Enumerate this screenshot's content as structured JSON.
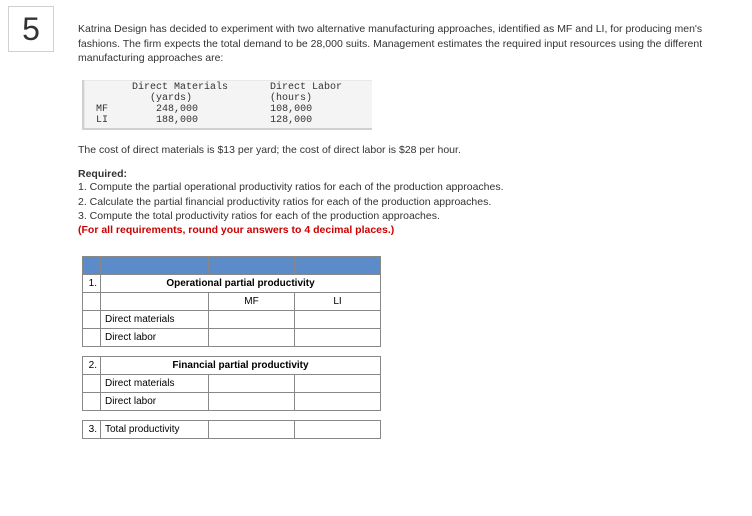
{
  "question_number": "5",
  "intro": "Katrina Design has decided to experiment with two alternative manufacturing approaches, identified as MF and LI, for producing men's fashions. The firm expects the total demand to be 28,000 suits. Management estimates the required input resources using the different manufacturing approaches are:",
  "data_table": {
    "header1_col1": "Direct Materials",
    "header1_col2": "Direct Labor",
    "header2_col1": "(yards)",
    "header2_col2": "(hours)",
    "rows": [
      {
        "label": "MF",
        "materials": "248,000",
        "labor": "108,000"
      },
      {
        "label": "LI",
        "materials": "188,000",
        "labor": "128,000"
      }
    ]
  },
  "cost_text": "The cost of direct materials is $13 per yard; the cost of direct labor is $28 per hour.",
  "required_label": "Required:",
  "requirements": [
    "1. Compute the partial operational productivity ratios for each of the production approaches.",
    "2. Calculate the partial financial productivity ratios for each of the production approaches.",
    "3. Compute the total productivity ratios for each of the production approaches."
  ],
  "rounding_note": "(For all requirements, round your answers to 4 decimal places.)",
  "answer_sections": {
    "s1": {
      "number": "1.",
      "title": "Operational partial productivity",
      "col1": "MF",
      "col2": "LI",
      "row1": "Direct materials",
      "row2": "Direct labor"
    },
    "s2": {
      "number": "2.",
      "title": "Financial partial productivity",
      "row1": "Direct materials",
      "row2": "Direct labor"
    },
    "s3": {
      "number": "3.",
      "row1": "Total productivity"
    }
  },
  "colors": {
    "header_blue": "#5b8bc9",
    "red": "#cc0000",
    "border": "#888888",
    "text": "#333333"
  }
}
